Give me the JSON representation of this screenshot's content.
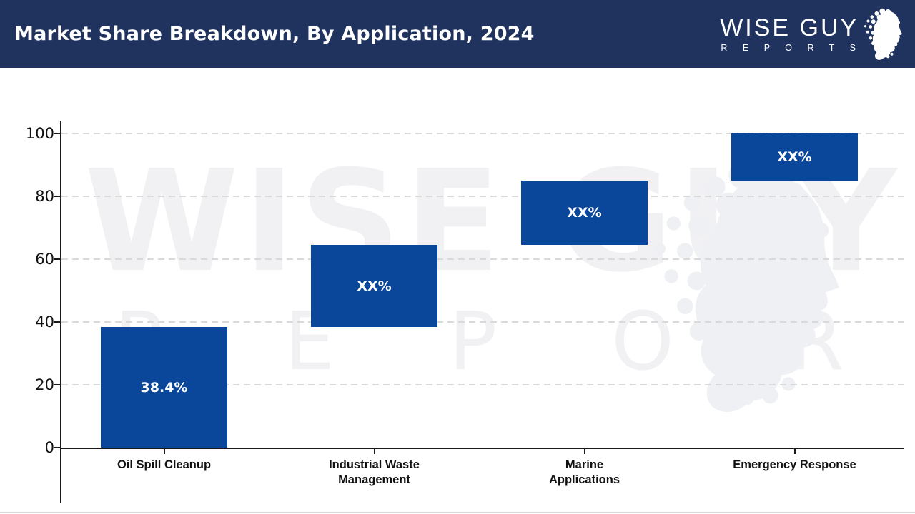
{
  "header": {
    "title": "Market Share Breakdown, By Application, 2024",
    "bg_color": "#20335f",
    "logo": {
      "line1": "WISE GUY",
      "line2": "R E P O R T S",
      "face_icon": "dotted-head-profile"
    }
  },
  "watermark": {
    "line1": "WISE GUY",
    "line2": "R E P O R T S",
    "face_icon": "dotted-head-profile",
    "color": "#f1f1f4"
  },
  "chart_data": {
    "type": "bar",
    "subtype": "waterfall",
    "title": "Market Share Breakdown, By Application, 2024",
    "categories": [
      "Oil Spill Cleanup",
      "Industrial Waste Management",
      "Marine Applications",
      "Emergency Response"
    ],
    "display_categories": [
      "Oil Spill Cleanup",
      "Industrial Waste\nManagement",
      "Marine\nApplications",
      "Emergency Response"
    ],
    "segments": [
      {
        "start": 0,
        "end": 38.4,
        "label": "38.4%"
      },
      {
        "start": 38.4,
        "end": 64.5,
        "label": "XX%"
      },
      {
        "start": 64.5,
        "end": 85.0,
        "label": "XX%"
      },
      {
        "start": 85.0,
        "end": 100.0,
        "label": "XX%"
      }
    ],
    "xlabel": "",
    "ylabel": "",
    "ylim": [
      0,
      100
    ],
    "yticks": [
      0,
      20,
      40,
      60,
      80,
      100
    ],
    "grid": "horizontal-dashed",
    "bar_color": "#0a4699",
    "bar_label_color": "#ffffff",
    "axis_color": "#1a1a1a",
    "gridline_color": "#d9d9d9",
    "legend": "none"
  }
}
